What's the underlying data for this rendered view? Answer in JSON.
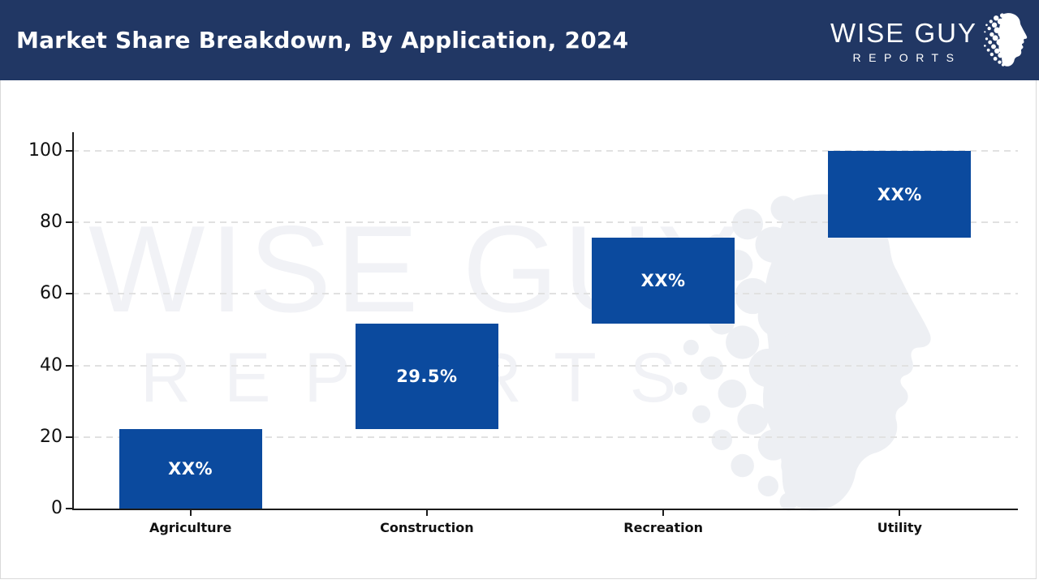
{
  "header": {
    "title": "Market Share Breakdown, By Application, 2024",
    "brand": {
      "line1": "WISE GUY",
      "line2": "REPORTS"
    }
  },
  "watermark": {
    "line1": "WISE GUY",
    "line2": "REPORTS"
  },
  "chart_data": {
    "type": "bar",
    "variant": "floating-waterfall",
    "title": "Market Share Breakdown, By Application, 2024",
    "categories": [
      "Agriculture",
      "Construction",
      "Recreation",
      "Utility"
    ],
    "series": [
      {
        "name": "Market share (%)",
        "segments": [
          {
            "category": "Agriculture",
            "start": 0,
            "end": 22.2,
            "label": "XX%"
          },
          {
            "category": "Construction",
            "start": 22.2,
            "end": 51.7,
            "label": "29.5%"
          },
          {
            "category": "Recreation",
            "start": 51.7,
            "end": 75.7,
            "label": "XX%"
          },
          {
            "category": "Utility",
            "start": 75.7,
            "end": 100,
            "label": "XX%"
          }
        ]
      }
    ],
    "xlabel": "",
    "ylabel": "",
    "yticks": [
      0,
      20,
      40,
      60,
      80,
      100
    ],
    "ylim": [
      0,
      105
    ],
    "grid": {
      "axis": "y",
      "style": "dashed",
      "color": "#e1e1e1"
    },
    "legend": "none",
    "bar_color": "#0b4a9e",
    "bar_label_color": "#ffffff",
    "axis_color": "#1b1b1b",
    "header_bg_color": "#213764",
    "watermark_color": "#f1f2f6"
  }
}
